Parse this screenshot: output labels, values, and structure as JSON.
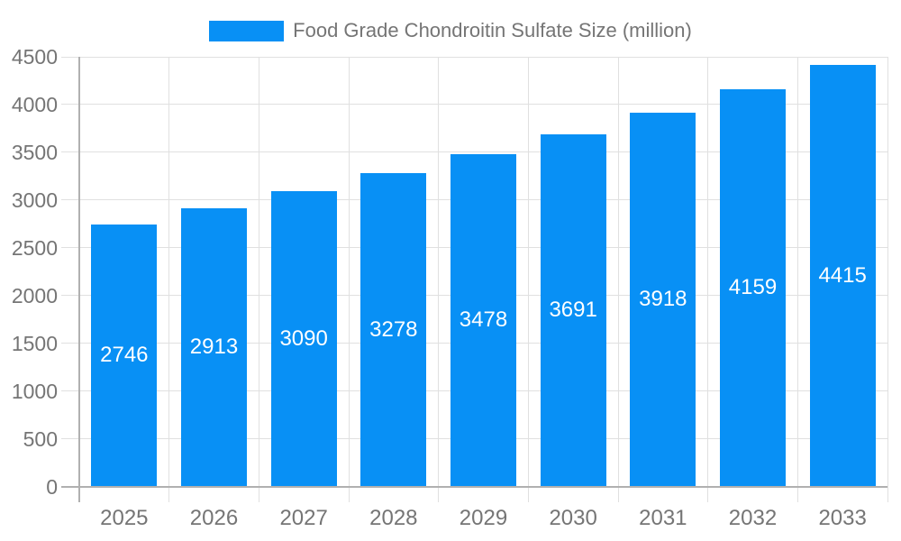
{
  "chart_data": {
    "type": "bar",
    "title": "Food Grade Chondroitin Sulfate Size (million)",
    "legend": {
      "position": "top-center",
      "label": "Food Grade Chondroitin Sulfate Size (million)"
    },
    "categories": [
      "2025",
      "2026",
      "2027",
      "2028",
      "2029",
      "2030",
      "2031",
      "2032",
      "2033"
    ],
    "series": [
      {
        "name": "Food Grade Chondroitin Sulfate Size (million)",
        "values": [
          2746,
          2913,
          3090,
          3278,
          3478,
          3691,
          3918,
          4159,
          4415
        ]
      }
    ],
    "bar_value_labels": [
      "2746",
      "2913",
      "3090",
      "3278",
      "3478",
      "3691",
      "3918",
      "4159",
      "4415"
    ],
    "xlabel": "",
    "ylabel": "",
    "ylim": [
      0,
      4500
    ],
    "y_tick_step": 500,
    "y_tick_labels": [
      "0",
      "500",
      "1000",
      "1500",
      "2000",
      "2500",
      "3000",
      "3500",
      "4000",
      "4500"
    ],
    "grid": true,
    "colors": {
      "bar": "#0890f5",
      "grid": "#e0e0e0",
      "axis": "#b0b0b0",
      "tick_text": "#757575",
      "bar_label_text": "#ffffff",
      "background": "#ffffff"
    }
  }
}
